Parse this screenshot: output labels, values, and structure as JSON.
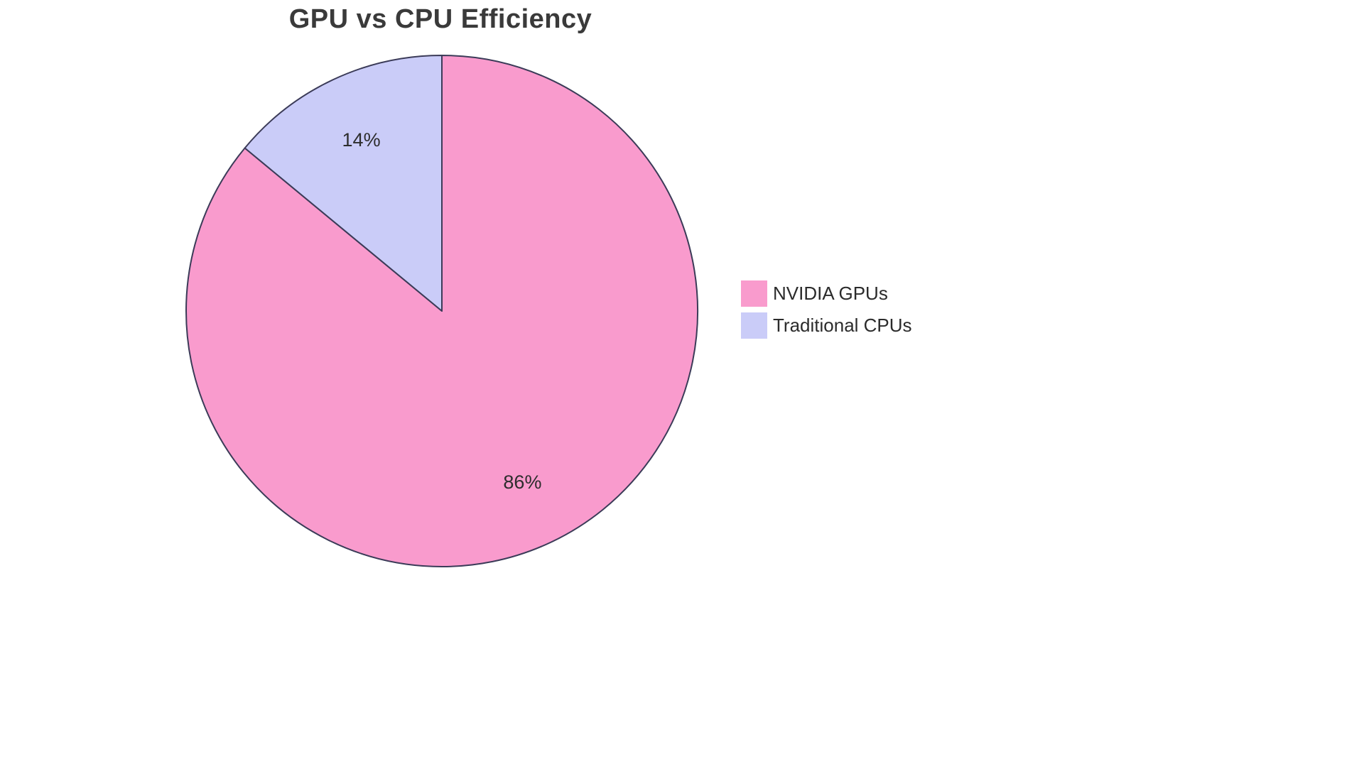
{
  "chart_data": {
    "type": "pie",
    "title": "GPU vs CPU Efficiency",
    "labels": [
      "NVIDIA GPUs",
      "Traditional CPUs"
    ],
    "values": [
      86,
      14
    ],
    "data_labels": [
      "86%",
      "14%"
    ],
    "slice_colors": [
      "#F99BCD",
      "#CACCF8"
    ],
    "outline_color": "#3B3B58",
    "label_text_color": "#2D2D2D",
    "title_color": "#3A3A3A",
    "legend_position": "right",
    "start_angle": "top",
    "direction": "clockwise"
  }
}
